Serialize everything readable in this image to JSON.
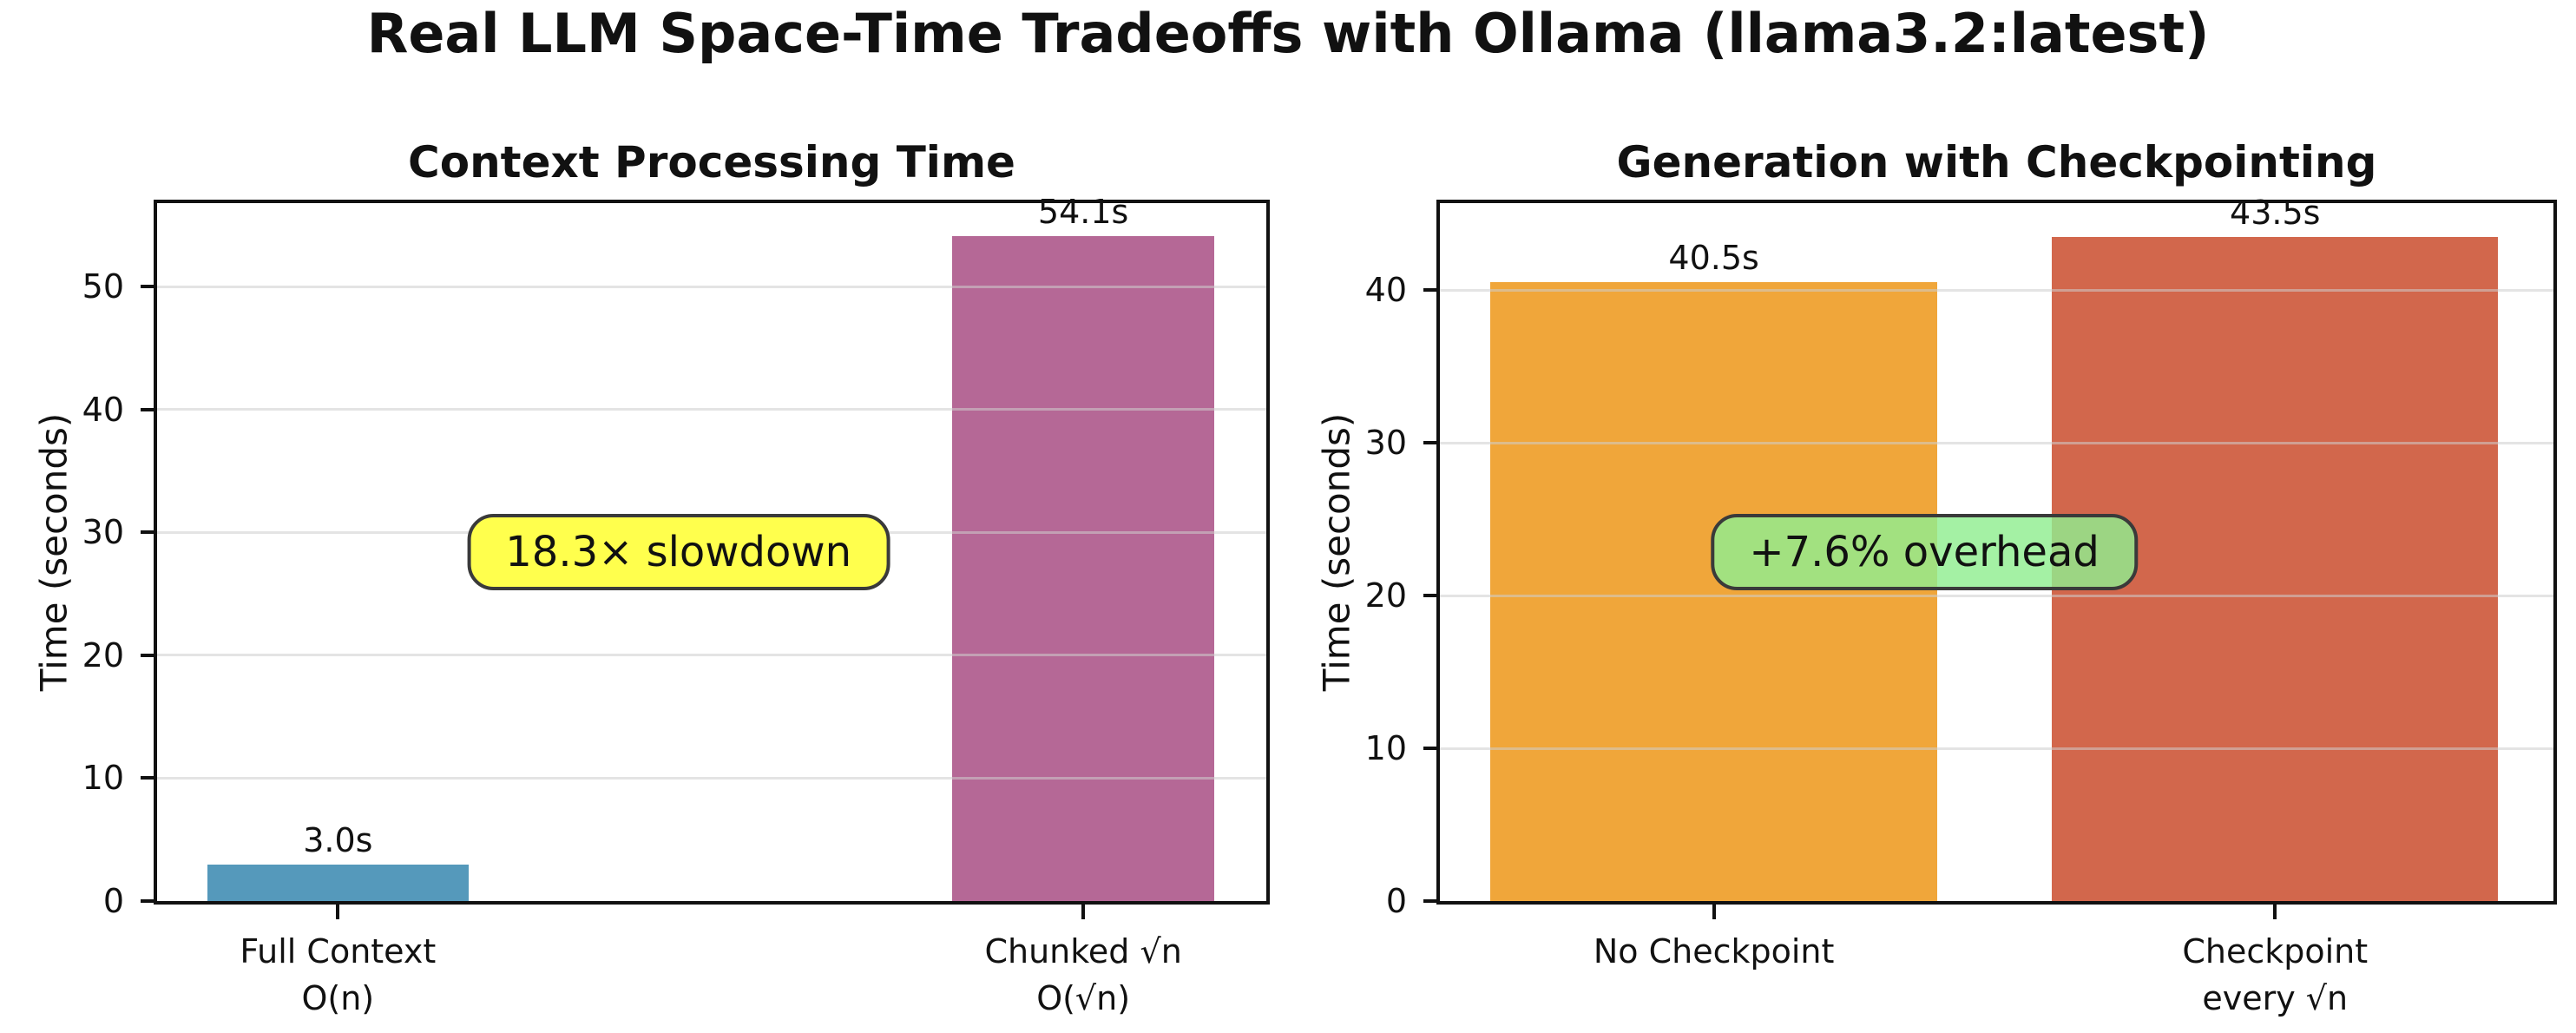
{
  "title": "Real LLM Space-Time Tradeoffs with Ollama (llama3.2:latest)",
  "chart_data": [
    {
      "type": "bar",
      "title": "Context Processing Time",
      "ylabel": "Time (seconds)",
      "categories": [
        "Full Context O(n)",
        "Chunked √n O(√n)"
      ],
      "category_lines": [
        [
          "Full Context",
          "O(n)"
        ],
        [
          "Chunked √n",
          "O(√n)"
        ]
      ],
      "values": [
        3.0,
        54.1
      ],
      "bar_labels": [
        "3.0s",
        "54.1s"
      ],
      "colors": [
        "#5599BB",
        "#B56896"
      ],
      "yticks": [
        0,
        10,
        20,
        30,
        40,
        50
      ],
      "ylim": [
        0,
        56.8
      ],
      "grid": "y",
      "legend": "none",
      "annotation": {
        "text": "18.3× slowdown",
        "bg_color": "#FFFF4D"
      }
    },
    {
      "type": "bar",
      "title": "Generation with Checkpointing",
      "ylabel": "Time (seconds)",
      "categories": [
        "No Checkpoint",
        "Checkpoint every √n"
      ],
      "category_lines": [
        [
          "No Checkpoint"
        ],
        [
          "Checkpoint",
          "every √n"
        ]
      ],
      "values": [
        40.5,
        43.5
      ],
      "bar_labels": [
        "40.5s",
        "43.5s"
      ],
      "colors": [
        "#F0A63A",
        "#D2674C"
      ],
      "yticks": [
        0,
        10,
        20,
        30,
        40
      ],
      "ylim": [
        0,
        45.7
      ],
      "grid": "y",
      "legend": "none",
      "annotation": {
        "text": "+7.6% overhead",
        "bg_color": "rgba(144,238,144,0.82)"
      }
    }
  ]
}
